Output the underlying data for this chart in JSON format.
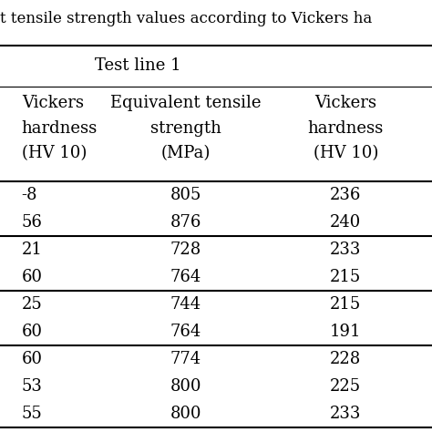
{
  "title": "t tensile strength values according to Vickers ha",
  "section_header": "Test line 1",
  "col1_header": [
    "Vickers",
    "hardness",
    "(HV 10)"
  ],
  "col2_header": [
    "Equivalent tensile",
    "strength",
    "(MPa)"
  ],
  "col3_header": [
    "Vickers",
    "hardness",
    "(HV 10)"
  ],
  "groups": [
    {
      "rows": [
        {
          "col1": "-8",
          "col2": "805",
          "col3": "236"
        },
        {
          "col1": "56",
          "col2": "876",
          "col3": "240"
        }
      ]
    },
    {
      "rows": [
        {
          "col1": "21",
          "col2": "728",
          "col3": "233"
        },
        {
          "col1": "60",
          "col2": "764",
          "col3": "215"
        }
      ]
    },
    {
      "rows": [
        {
          "col1": "25",
          "col2": "744",
          "col3": "215"
        },
        {
          "col1": "60",
          "col2": "764",
          "col3": "191"
        }
      ]
    },
    {
      "rows": [
        {
          "col1": "60",
          "col2": "774",
          "col3": "228"
        },
        {
          "col1": "53",
          "col2": "800",
          "col3": "225"
        },
        {
          "col1": "55",
          "col2": "800",
          "col3": "233"
        }
      ]
    }
  ],
  "bg_color": "#ffffff",
  "text_color": "#000000",
  "line_color": "#000000",
  "font_size": 13,
  "header_font_size": 13
}
